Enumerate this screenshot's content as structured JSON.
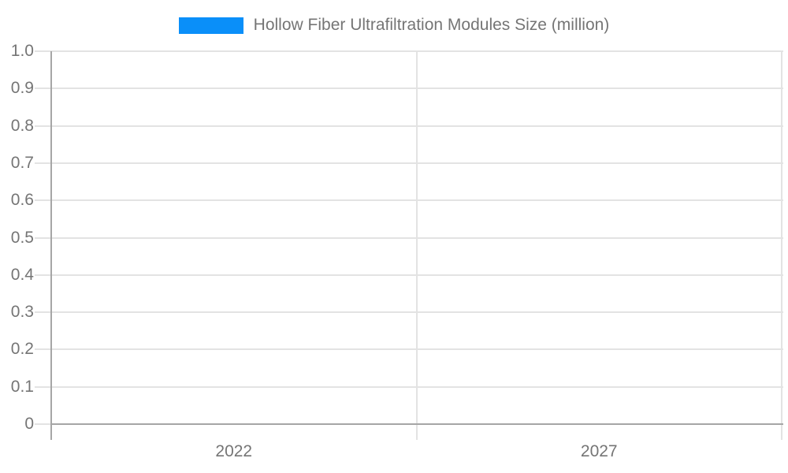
{
  "colors": {
    "series_blue": "#0a8ff9",
    "gridline": "#e3e3e3",
    "axis_line": "#a6a6a6",
    "label_text": "#757575",
    "title_text": "#757575",
    "background": "#ffffff"
  },
  "legend": {
    "position": "top-center",
    "swatch_color": "#0a8ff9"
  },
  "chart_data": {
    "type": "bar",
    "title": "Hollow Fiber Ultrafiltration Modules Size (million)",
    "categories": [
      "2022",
      "2027"
    ],
    "series": [
      {
        "name": "Hollow Fiber Ultrafiltration Modules Size (million)",
        "color": "#0a8ff9",
        "values": [
          null,
          null
        ]
      }
    ],
    "xlabel": "",
    "ylabel": "",
    "ylim": [
      0,
      1.0
    ],
    "ytick_labels": [
      "1.0",
      "0.9",
      "0.8",
      "0.7",
      "0.6",
      "0.5",
      "0.4",
      "0.3",
      "0.2",
      "0.1",
      "0"
    ],
    "grid": true,
    "legend_position": "top",
    "plot_is_empty": true
  }
}
